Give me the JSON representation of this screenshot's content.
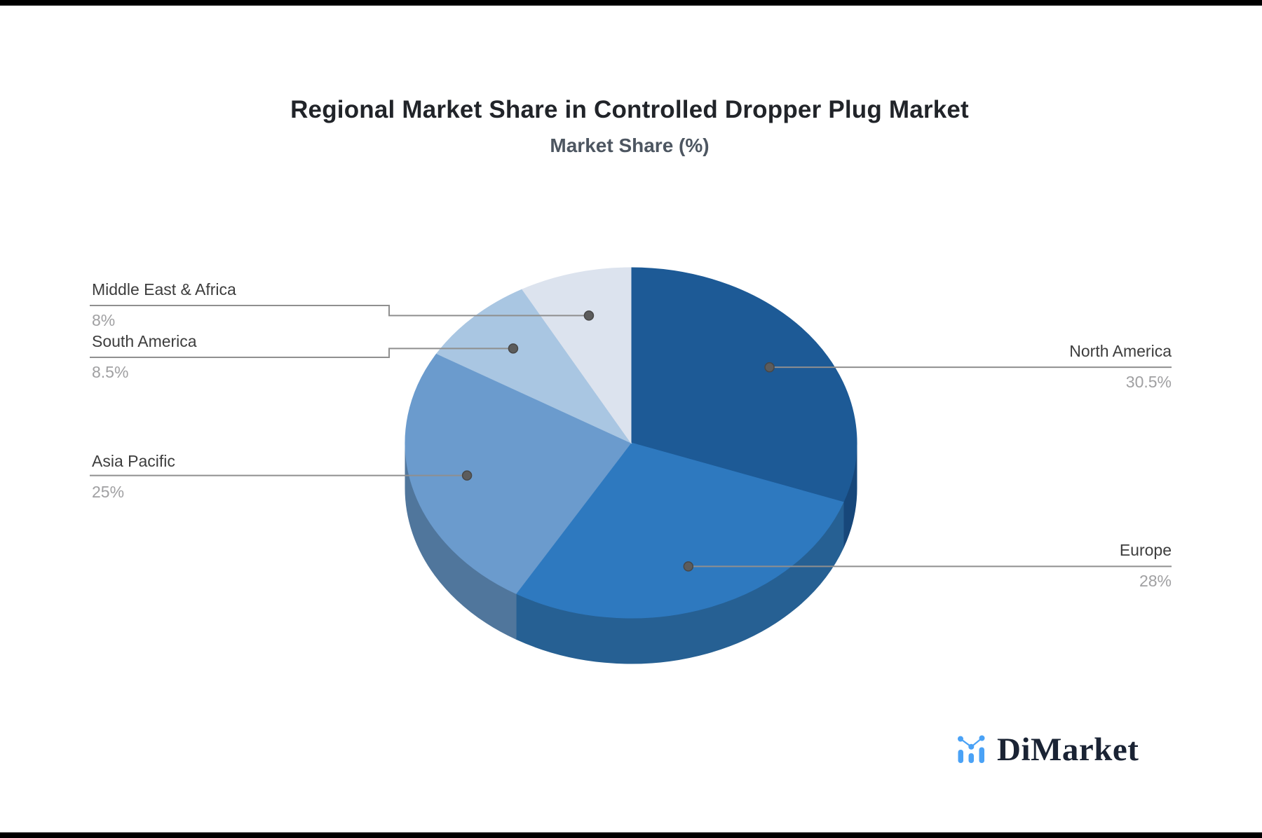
{
  "header": {
    "title": "Regional Market Share in Controlled Dropper Plug Market",
    "subtitle": "Market Share (%)"
  },
  "chart_data": {
    "type": "pie",
    "title": "Regional Market Share in Controlled Dropper Plug Market",
    "subtitle": "Market Share (%)",
    "unit": "%",
    "style": "3d-pie",
    "start_angle_deg": 0,
    "direction": "clockwise",
    "legend_position": "none",
    "series": [
      {
        "label": "North America",
        "value": 30.5,
        "display": "30.5%",
        "color": "#1d5a96",
        "rim_color": "#17477a"
      },
      {
        "label": "Europe",
        "value": 28,
        "display": "28%",
        "color": "#2e79bf",
        "rim_color": "#266093"
      },
      {
        "label": "Asia Pacific",
        "value": 25,
        "display": "25%",
        "color": "#6b9bcd",
        "rim_color": "#50769c"
      },
      {
        "label": "South America",
        "value": 8.5,
        "display": "8.5%",
        "color": "#a9c6e2",
        "rim_color": "#8aa9c7"
      },
      {
        "label": "Middle East & Africa",
        "value": 8,
        "display": "8%",
        "color": "#dce3ee",
        "rim_color": "#b9c3d4"
      }
    ],
    "leader_line_color": "#8f8f8f",
    "dot_color": "#5c5c5c"
  },
  "branding": {
    "logo_text": "DiMarket",
    "icon": "bar-line-chart-icon",
    "icon_color": "#4aa2f6",
    "text_color": "#1a2334"
  }
}
